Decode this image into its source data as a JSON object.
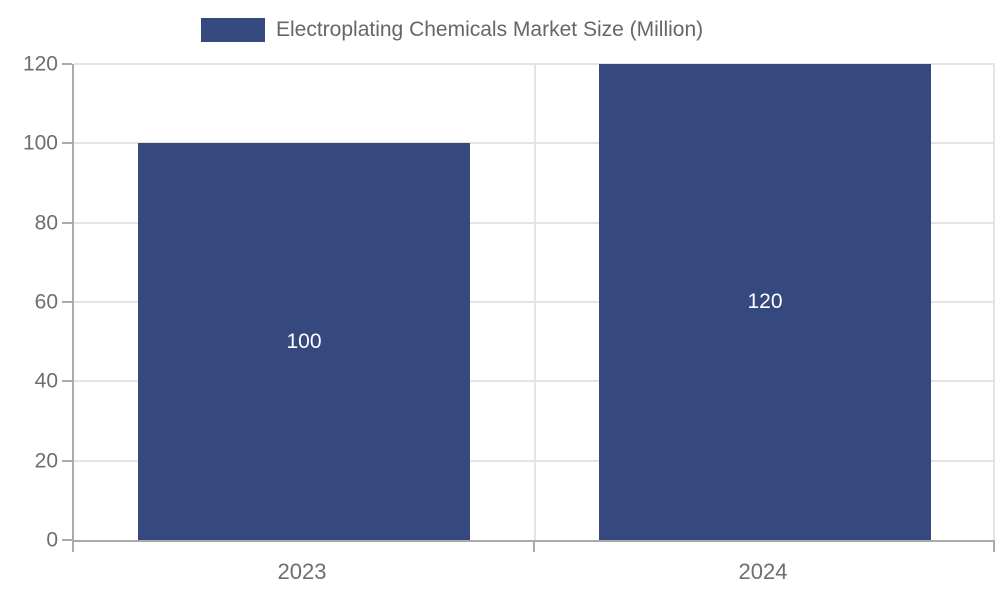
{
  "legend": {
    "label": "Electroplating Chemicals Market Size (Million)"
  },
  "chart_data": {
    "type": "bar",
    "title": "Electroplating Chemicals Market Size (Million)",
    "categories": [
      "2023",
      "2024"
    ],
    "values": [
      100,
      120
    ],
    "value_labels": [
      "100",
      "120"
    ],
    "xlabel": "",
    "ylabel": "",
    "ylim": [
      0,
      120
    ],
    "yticks": [
      0,
      20,
      40,
      60,
      80,
      100,
      120
    ],
    "grid": true,
    "legend_position": "top-center"
  },
  "colors": {
    "bar": "#35497E",
    "value_label": "#ffffff",
    "axis": "#aaaaaa",
    "gridline": "#e4e4e4",
    "tick_text": "#6e6e6e",
    "legend_text": "#666666"
  }
}
